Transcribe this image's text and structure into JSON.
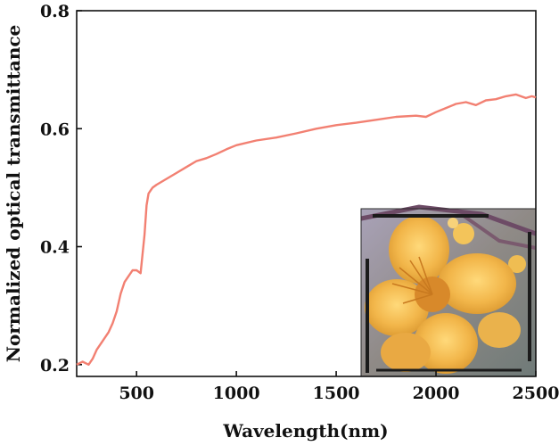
{
  "chart_data": {
    "type": "line",
    "title": "",
    "xlabel": "Wavelength(nm)",
    "ylabel": "Normalized optical transmittance",
    "xlim": [
      200,
      2500
    ],
    "ylim": [
      0.18,
      0.8
    ],
    "x_ticks": [
      500,
      1000,
      1500,
      2000,
      2500
    ],
    "y_ticks": [
      0.2,
      0.4,
      0.6,
      0.8
    ],
    "x_tick_labels": [
      "500",
      "1000",
      "1500",
      "2000",
      "2500"
    ],
    "y_tick_labels": [
      "0.2",
      "0.4",
      "0.6",
      "0.8"
    ],
    "grid": false,
    "legend": "none",
    "series": [
      {
        "color": "#f28072",
        "x": [
          200,
          230,
          260,
          280,
          300,
          330,
          360,
          380,
          400,
          420,
          440,
          460,
          480,
          500,
          520,
          540,
          550,
          560,
          570,
          580,
          600,
          650,
          700,
          750,
          800,
          850,
          900,
          950,
          1000,
          1100,
          1200,
          1300,
          1400,
          1500,
          1600,
          1700,
          1800,
          1900,
          1950,
          2000,
          2050,
          2100,
          2150,
          2200,
          2250,
          2300,
          2350,
          2400,
          2450,
          2480,
          2500
        ],
        "y": [
          0.2,
          0.205,
          0.2,
          0.21,
          0.225,
          0.24,
          0.255,
          0.27,
          0.29,
          0.32,
          0.34,
          0.35,
          0.36,
          0.36,
          0.355,
          0.42,
          0.47,
          0.49,
          0.495,
          0.5,
          0.505,
          0.515,
          0.525,
          0.535,
          0.545,
          0.55,
          0.557,
          0.565,
          0.572,
          0.58,
          0.585,
          0.592,
          0.6,
          0.606,
          0.61,
          0.615,
          0.62,
          0.622,
          0.62,
          0.628,
          0.635,
          0.642,
          0.645,
          0.64,
          0.648,
          0.65,
          0.655,
          0.658,
          0.652,
          0.655,
          0.653
        ]
      }
    ]
  },
  "inset": {
    "image": "yellow-flower-photo"
  }
}
